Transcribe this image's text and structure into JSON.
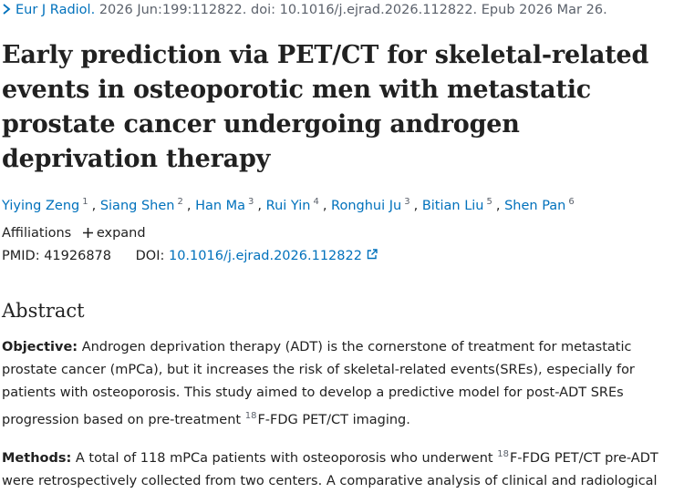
{
  "citation": {
    "journal": "Eur J Radiol.",
    "details": "2026 Jun:199:112822. doi: 10.1016/j.ejrad.2026.112822. Epub 2026 Mar 26."
  },
  "title": "Early prediction via PET/CT for skeletal-related events in osteoporotic men with metastatic prostate cancer undergoing androgen deprivation therapy",
  "authors": [
    {
      "name": "Yiying Zeng",
      "affiliation": "1"
    },
    {
      "name": "Siang Shen",
      "affiliation": "2"
    },
    {
      "name": "Han Ma",
      "affiliation": "3"
    },
    {
      "name": "Rui Yin",
      "affiliation": "4"
    },
    {
      "name": "Ronghui Ju",
      "affiliation": "3"
    },
    {
      "name": "Bitian Liu",
      "affiliation": "5"
    },
    {
      "name": "Shen Pan",
      "affiliation": "6"
    }
  ],
  "author_separator": ",",
  "affiliations": {
    "label": "Affiliations",
    "toggle": "expand"
  },
  "identifiers": {
    "pmid_label": "PMID:",
    "pmid": "41926878",
    "doi_label": "DOI:",
    "doi": "10.1016/j.ejrad.2026.112822"
  },
  "abstract": {
    "heading": "Abstract",
    "sections": [
      {
        "label": "Objective:",
        "parts": [
          {
            "text": "Androgen deprivation therapy (ADT) is the cornerstone of treatment for metastatic prostate cancer (mPCa), but it increases the risk of skeletal-related events(SREs), especially for patients with osteoporosis. This study aimed to develop a predictive model for post-ADT SREs progression based on pre-treatment "
          },
          {
            "sup": "18"
          },
          {
            "text": "F-FDG PET/CT imaging."
          }
        ]
      },
      {
        "label": "Methods:",
        "parts": [
          {
            "text": "A total of 118 mPCa patients with osteoporosis who underwent "
          },
          {
            "sup": "18"
          },
          {
            "text": "F-FDG PET/CT pre-ADT were retrospectively collected from two centers. A comparative analysis of clinical and radiological"
          }
        ]
      }
    ]
  }
}
